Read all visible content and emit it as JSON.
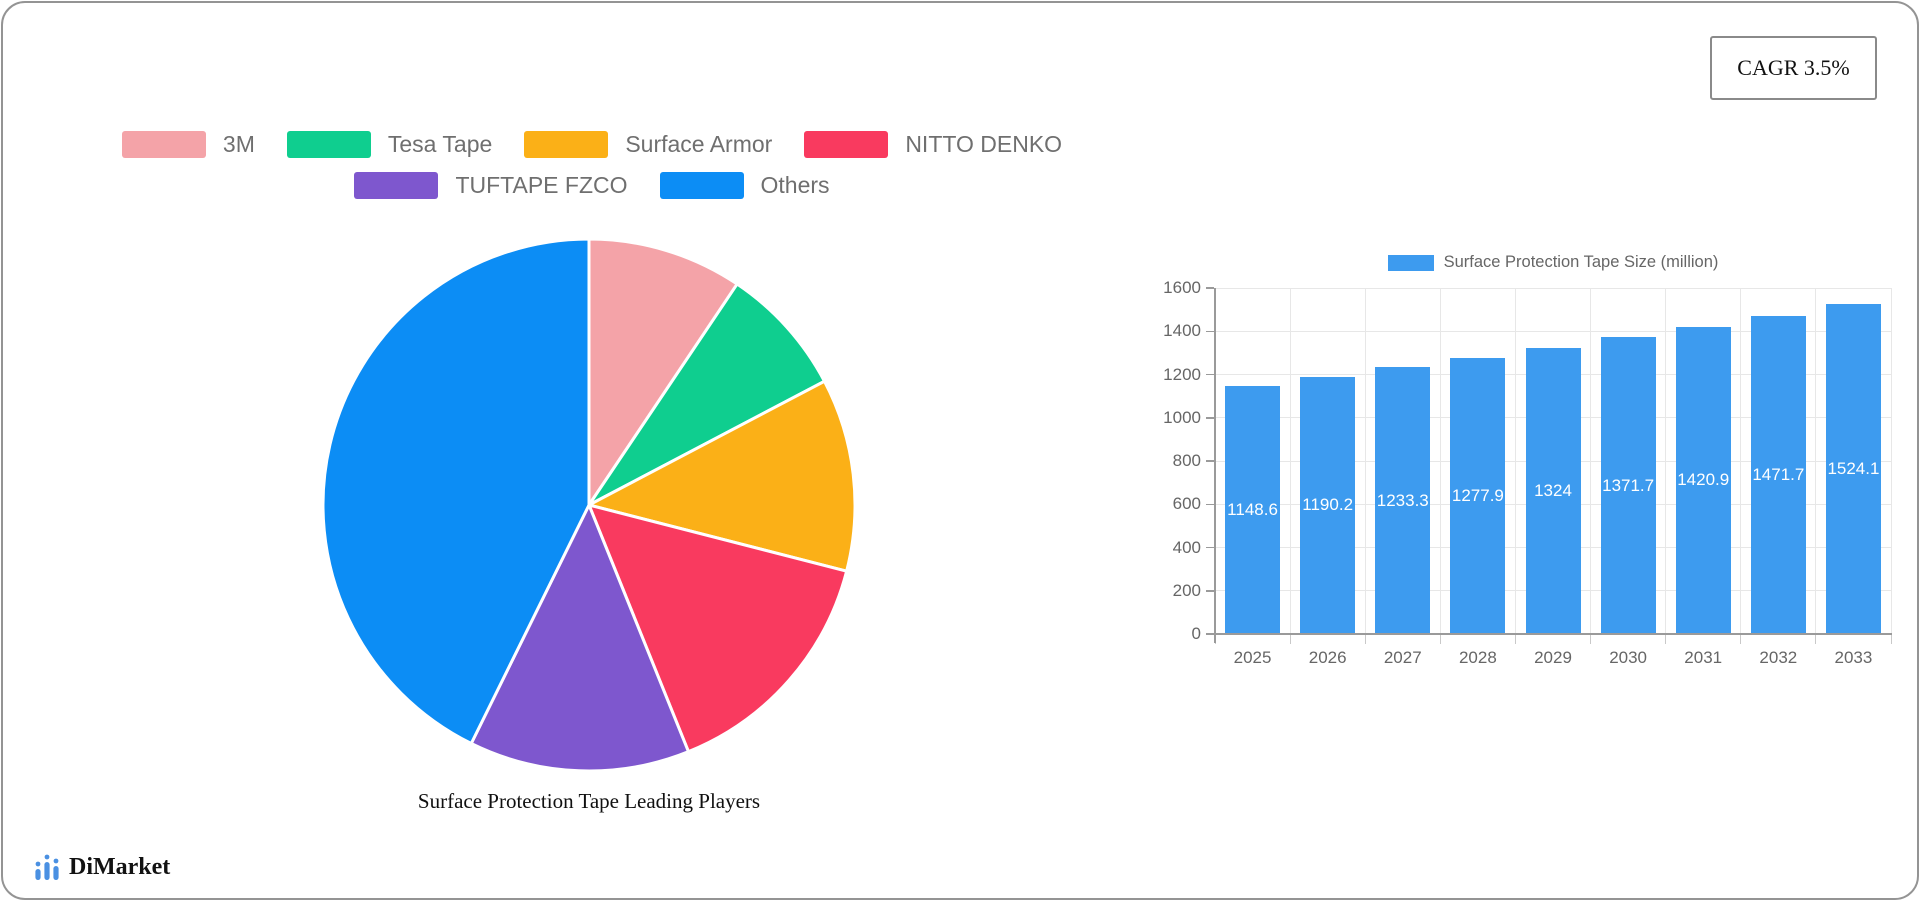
{
  "window": {
    "cagr_badge": "CAGR 3.5%"
  },
  "branding": {
    "name": "DiMarket",
    "logo_icon": "bar-chart-logo-icon",
    "logo_color": "#4a90e2"
  },
  "colors": {
    "bar_blue": "#3d9bef",
    "legend_text": "#6f6f6f",
    "axis_text": "#666666",
    "grid": "#e7e7e7"
  },
  "chart_data": [
    {
      "type": "pie",
      "title": "Surface Protection Tape Leading Players",
      "legend_position": "top",
      "start_angle_deg": -90,
      "direction": "clockwise",
      "unit": "percent-estimated",
      "series": [
        {
          "name": "3M",
          "value": 9.4,
          "color": "#f4a3a8"
        },
        {
          "name": "Tesa Tape",
          "value": 7.9,
          "color": "#0fce8f"
        },
        {
          "name": "Surface Armor",
          "value": 11.7,
          "color": "#fbb017"
        },
        {
          "name": "NITTO DENKO",
          "value": 14.9,
          "color": "#f93a5f"
        },
        {
          "name": "TUFTAPE FZCO",
          "value": 13.4,
          "color": "#7e57ce"
        },
        {
          "name": "Others",
          "value": 42.7,
          "color": "#0c8df5"
        }
      ]
    },
    {
      "type": "bar",
      "legend": "Surface Protection Tape Size (million)",
      "categories": [
        "2025",
        "2026",
        "2027",
        "2028",
        "2029",
        "2030",
        "2031",
        "2032",
        "2033"
      ],
      "values": [
        1148.6,
        1190.2,
        1233.3,
        1277.9,
        1324,
        1371.7,
        1420.9,
        1471.7,
        1524.1
      ],
      "ylim": [
        0,
        1600
      ],
      "ytick_step": 200,
      "yticks": [
        0,
        200,
        400,
        600,
        800,
        1000,
        1200,
        1400,
        1600
      ],
      "bar_color": "#3d9bef",
      "grid": true,
      "value_label_position": "inside-middle",
      "legend_position": "top"
    }
  ]
}
